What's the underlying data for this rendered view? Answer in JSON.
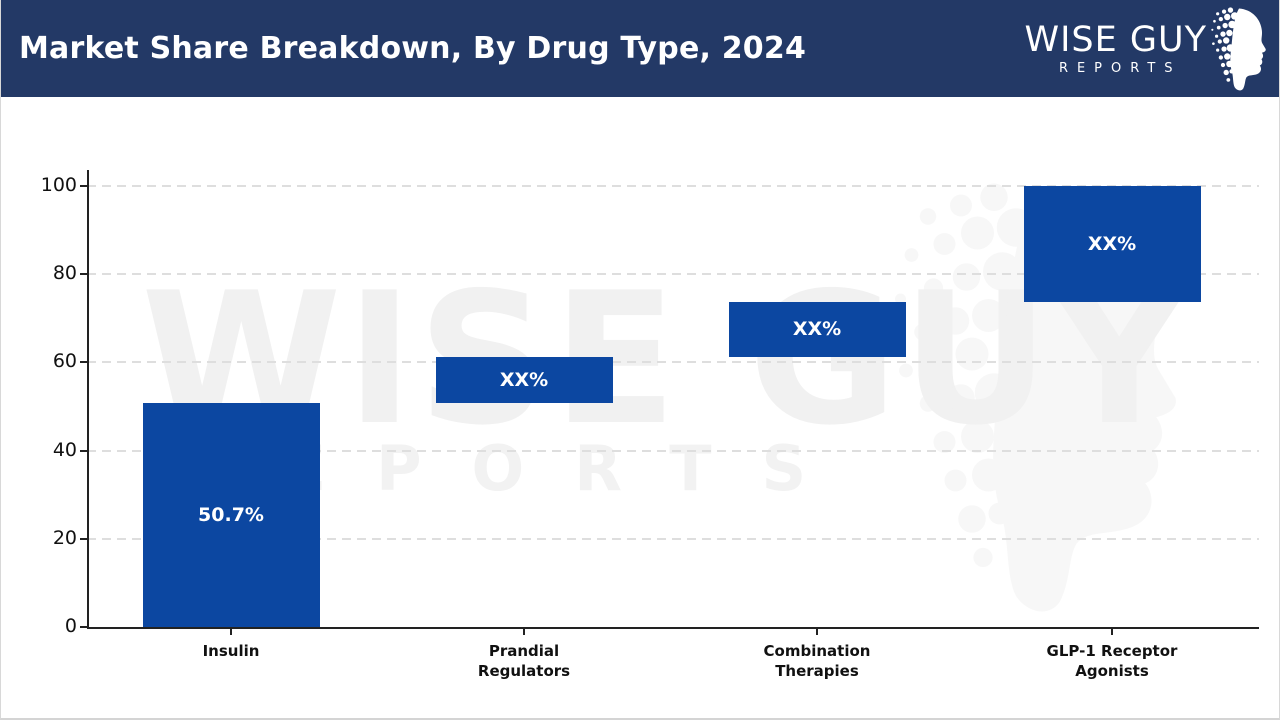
{
  "header": {
    "title": "Market Share Breakdown, By Drug Type, 2024",
    "logo": {
      "line1": "WISE GUY",
      "line2": "REPORTS"
    }
  },
  "watermark": {
    "line1": "WISE GUY",
    "line2": "REPORTS"
  },
  "chart_data": {
    "type": "bar",
    "subtype": "waterfall",
    "title": "Market Share Breakdown, By Drug Type, 2024",
    "xlabel": "",
    "ylabel": "",
    "ylim": [
      0,
      100
    ],
    "yticks": [
      0,
      20,
      40,
      60,
      80,
      100
    ],
    "grid": "horizontal-dashed",
    "legend": "none",
    "categories": [
      "Insulin",
      "Prandial Regulators",
      "Combination Therapies",
      "GLP-1 Receptor Agonists"
    ],
    "segments": [
      {
        "category": "Insulin",
        "start": 0,
        "end": 50.7,
        "label": "50.7%"
      },
      {
        "category": "Prandial Regulators",
        "start": 50.7,
        "end": 61.3,
        "label": "XX%"
      },
      {
        "category": "Combination Therapies",
        "start": 61.3,
        "end": 73.7,
        "label": "XX%"
      },
      {
        "category": "GLP-1 Receptor Agonists",
        "start": 73.7,
        "end": 100,
        "label": "XX%"
      }
    ]
  },
  "colors": {
    "header_bg": "#233966",
    "bar": "#0c47a1",
    "bar_label": "#ffffff",
    "axis": "#222222",
    "grid": "#dedede",
    "watermark": "#f1f1f1",
    "title_text": "#ffffff"
  }
}
